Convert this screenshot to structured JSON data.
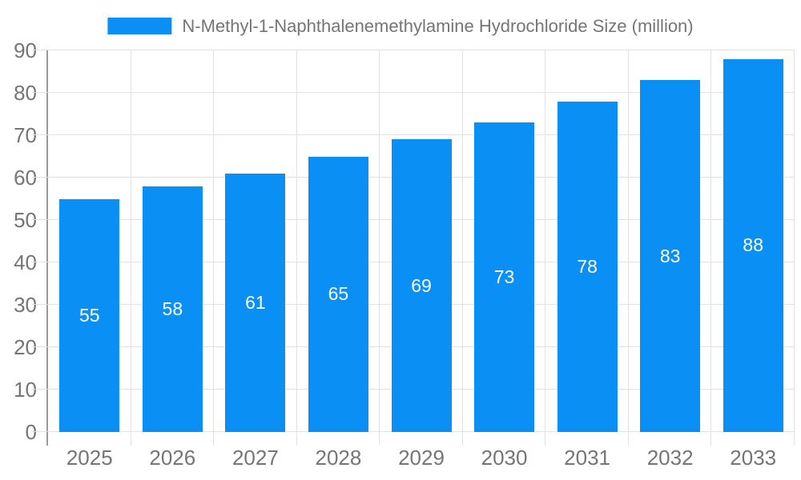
{
  "chart_data": {
    "type": "bar",
    "title": "N-Methyl-1-Naphthalenemethylamine Hydrochloride Size (million)",
    "categories": [
      "2025",
      "2026",
      "2027",
      "2028",
      "2029",
      "2030",
      "2031",
      "2032",
      "2033"
    ],
    "values": [
      55,
      58,
      61,
      65,
      69,
      73,
      78,
      83,
      88
    ],
    "xlabel": "",
    "ylabel": "",
    "ylim": [
      0,
      90
    ],
    "yticks": [
      0,
      10,
      20,
      30,
      40,
      50,
      60,
      70,
      80,
      90
    ],
    "grid": true,
    "value_labels": "centered-inside-bars",
    "legend_position": "top-center",
    "colors": {
      "bar": "#0a90f5",
      "value_label": "#ffffff",
      "grid": "#e2e2e2",
      "axis": "#999999",
      "text": "#757575"
    }
  }
}
